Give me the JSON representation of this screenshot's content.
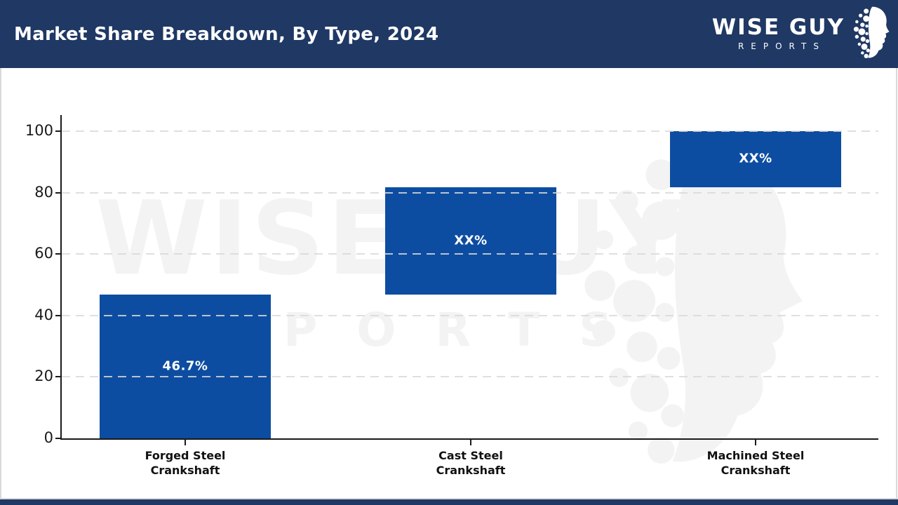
{
  "header": {
    "title": "Market Share Breakdown, By Type, 2024",
    "logo": {
      "wordmark": "WISE GUY",
      "subtext": "REPORTS"
    }
  },
  "watermark": {
    "wordmark": "WISE GUY",
    "subtext": "REPORTS"
  },
  "chart_data": {
    "type": "bar",
    "subtype": "waterfall",
    "title": "Market Share Breakdown, By Type, 2024",
    "categories": [
      "Forged Steel Crankshaft",
      "Cast Steel Crankshaft",
      "Machined Steel Crankshaft"
    ],
    "category_lines": [
      [
        "Forged Steel",
        "Crankshaft"
      ],
      [
        "Cast Steel",
        "Crankshaft"
      ],
      [
        "Machined Steel",
        "Crankshaft"
      ]
    ],
    "bars": [
      {
        "label": "46.7%",
        "start": 0,
        "end": 46.7
      },
      {
        "label": "XX%",
        "start": 46.7,
        "end": 81.8
      },
      {
        "label": "XX%",
        "start": 81.8,
        "end": 100
      }
    ],
    "yticks": [
      0,
      20,
      40,
      60,
      80,
      100
    ],
    "ylim": [
      0,
      105
    ],
    "grid": "dashed horizontal, drawn over bars",
    "legend": null,
    "xlabel": "",
    "ylabel": ""
  },
  "colors": {
    "header_bg": "#1f3864",
    "bar_fill": "#0d4da1",
    "gridline": "#d9d9d9",
    "axis": "#1a1a1a",
    "text_dark": "#111111",
    "watermark": "#f3f3f3",
    "frame": "#d9d9d9",
    "white": "#ffffff"
  }
}
